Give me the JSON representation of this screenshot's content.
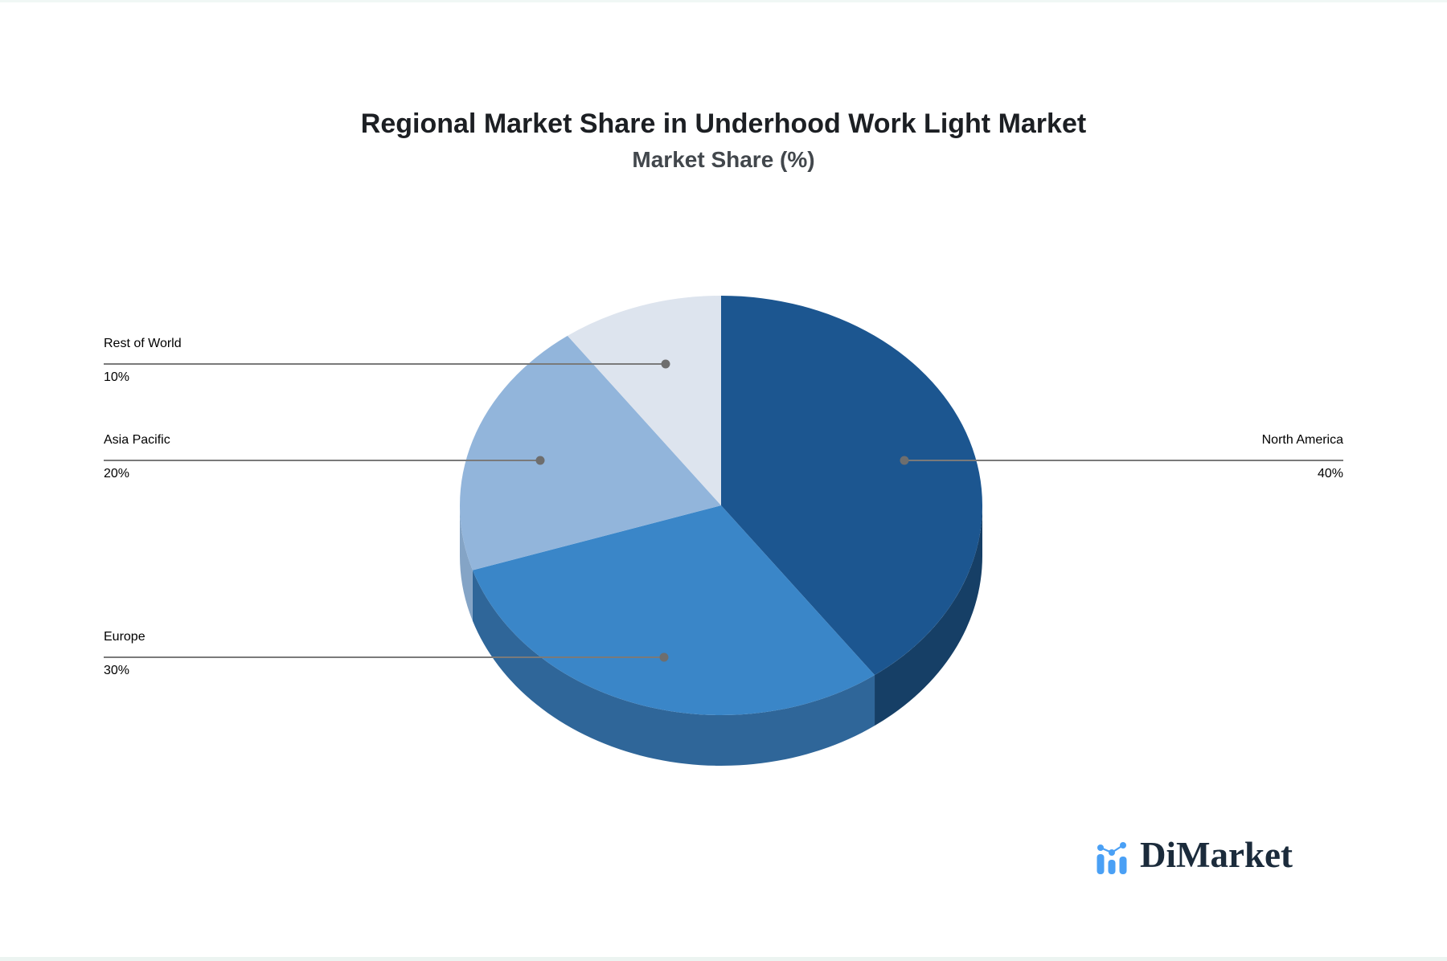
{
  "chart": {
    "title": "Regional Market Share in Underhood Work Light Market",
    "subtitle": "Market Share (%)"
  },
  "chart_data": {
    "type": "pie",
    "style": "3d",
    "title": "Regional Market Share in Underhood Work Light Market",
    "subtitle": "Market Share (%)",
    "unit": "%",
    "start_angle": "12-oclock",
    "direction": "clockwise",
    "categories": [
      "North America",
      "Europe",
      "Asia Pacific",
      "Rest of World"
    ],
    "values": [
      40,
      30,
      20,
      10
    ],
    "slices": [
      {
        "label": "North America",
        "value": 40,
        "pct_text": "40%",
        "top_color": "#1C5690",
        "side_color": "#163F66",
        "label_side": "right"
      },
      {
        "label": "Europe",
        "value": 30,
        "pct_text": "30%",
        "top_color": "#3A86C8",
        "side_color": "#2F6699",
        "label_side": "left"
      },
      {
        "label": "Asia Pacific",
        "value": 20,
        "pct_text": "20%",
        "top_color": "#92B5DB",
        "side_color": "#84A4C6",
        "label_side": "left"
      },
      {
        "label": "Rest of World",
        "value": 10,
        "pct_text": "10%",
        "top_color": "#DDE4EE",
        "side_color": "#C9D3E2",
        "label_side": "left"
      }
    ],
    "legend": "none",
    "leader_line_color": "#7a7a7a",
    "label_color": "#22262a",
    "pct_color": "#9a9a9a"
  },
  "logo": {
    "text": "DiMarket",
    "icon": "bar-chart-logo-icon",
    "icon_color": "#4AA0F5",
    "text_color": "#1B2B3B"
  }
}
